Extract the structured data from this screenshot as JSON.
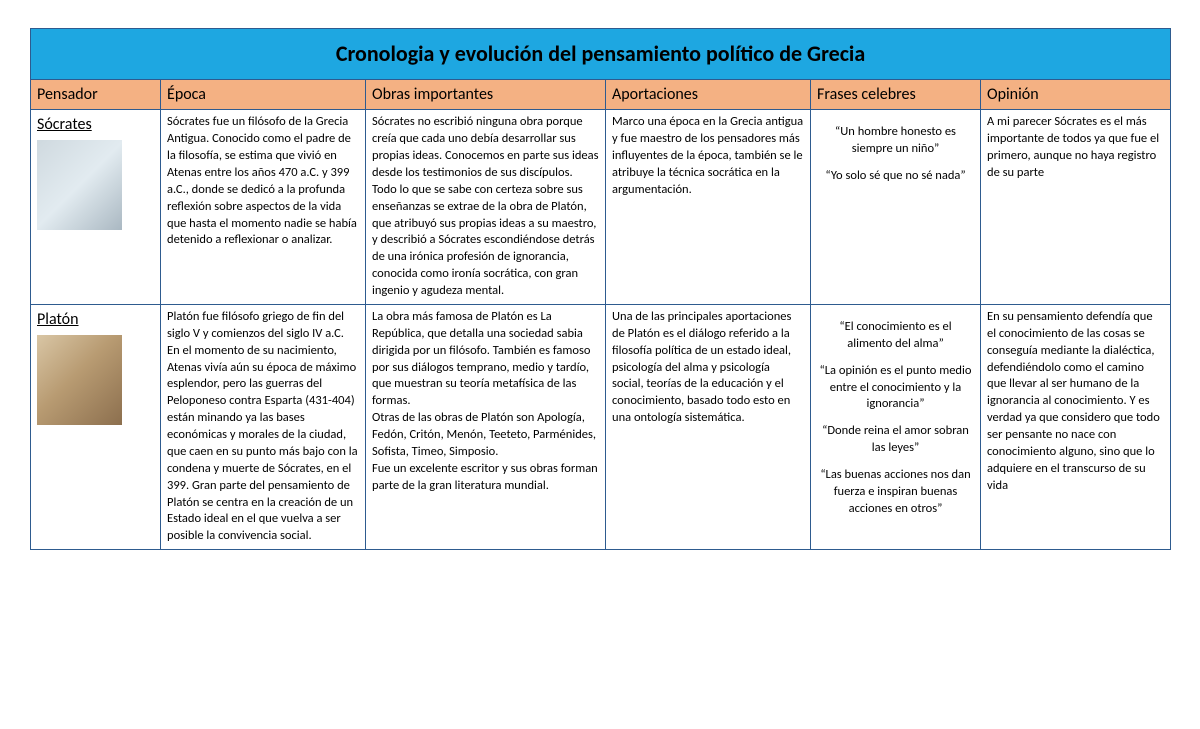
{
  "title": "Cronologia y evolución del pensamiento político de Grecia",
  "headers": {
    "c1": "Pensador",
    "c2": "Época",
    "c3": "Obras importantes",
    "c4": "Aportaciones",
    "c5": "Frases celebres",
    "c6": "Opinión"
  },
  "rows": [
    {
      "name": "Sócrates",
      "img_bg": "linear-gradient(135deg,#cfd9df 0%,#e2ebf0 50%,#aab8c2 100%)",
      "epoca": "Sócrates fue un filósofo de la Grecia Antigua. Conocido como el padre de la filosofía, se estima que vivió en Atenas entre los años 470 a.C. y 399 a.C., donde se dedicó a la profunda reflexión sobre aspectos de la vida que hasta el momento nadie se había detenido a reflexionar o analizar.",
      "obras": "Sócrates no escribió ninguna obra porque creía que cada uno debía desarrollar sus propias ideas. Conocemos en parte sus ideas desde los testimonios de sus discípulos.\n Todo lo que se sabe con certeza sobre sus enseñanzas se extrae de la obra de Platón, que atribuyó sus propias ideas a su maestro, y describió a Sócrates escondiéndose detrás de una irónica profesión de ignorancia, conocida como ironía socrática, con gran ingenio y agudeza mental.",
      "aport": "Marco una época en la Grecia antigua y fue maestro de los pensadores más influyentes de la época, también se le atribuye la técnica socrática en la argumentación.",
      "frases": [
        "“Un hombre honesto es siempre un niño”",
        "“Yo solo sé que no sé nada”"
      ],
      "opinion": "A mi parecer Sócrates es el más importante de todos ya que fue el primero, aunque no haya registro de su parte"
    },
    {
      "name": "Platón",
      "img_bg": "linear-gradient(135deg,#d9c6a5 0%,#b89b72 45%,#8c6f4e 100%)",
      "epoca": "Platón fue filósofo griego de fin del siglo V y comienzos del siglo IV a.C. En el momento de su nacimiento, Atenas vivía aún su época de máximo esplendor, pero las guerras del Peloponeso contra Esparta (431-404) están minando ya las bases económicas y morales de la ciudad, que caen en su punto más bajo con la condena y muerte de Sócrates, en el 399. Gran parte del pensamiento de Platón se centra en la creación de un Estado ideal en el que vuelva a ser posible la convivencia social.",
      "obras": "La obra más famosa de Platón es La República, que detalla una sociedad sabia dirigida por un filósofo. También es famoso por sus diálogos temprano, medio y tardío, que muestran su teoría metafísica de las formas.\nOtras de las obras de Platón son Apología, Fedón, Critón, Menón, Teeteto, Parménides, Sofista, Timeo, Simposio.\nFue un excelente escritor y sus obras forman parte de la gran literatura mundial.",
      "aport": "Una de las principales aportaciones de Platón es el diálogo referido a la filosofía política de un estado ideal, psicología del alma y psicología social, teorías de la educación y el conocimiento, basado todo esto en una ontología sistemática.",
      "frases": [
        "“El conocimiento es el alimento del alma”",
        "“La opinión es el punto medio entre el conocimiento y la ignorancia”",
        "“Donde reina el amor sobran las leyes”",
        "“Las buenas acciones nos dan fuerza e inspiran buenas acciones en otros”"
      ],
      "opinion": "En su pensamiento defendía que el conocimiento de las cosas se conseguía mediante la dialéctica, defendiéndolo como el camino que llevar al ser humano de la ignorancia al conocimiento. Y es verdad ya que considero que todo ser pensante no nace con conocimiento alguno, sino que lo adquiere en el transcurso de su vida"
    }
  ]
}
